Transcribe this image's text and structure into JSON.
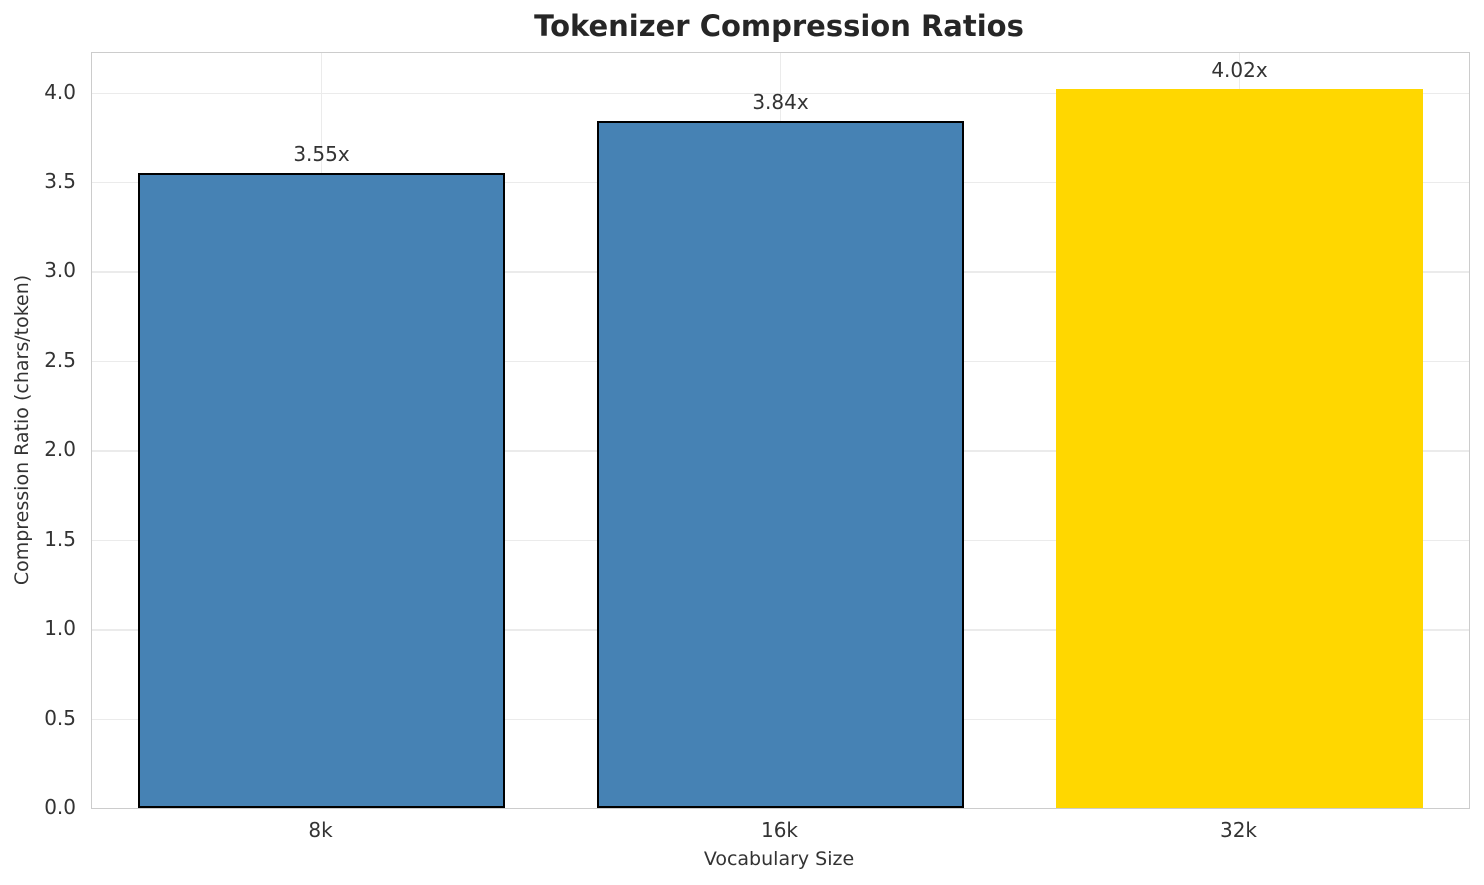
{
  "chart_data": {
    "type": "bar",
    "title": "Tokenizer Compression Ratios",
    "xlabel": "Vocabulary Size",
    "ylabel": "Compression Ratio (chars/token)",
    "categories": [
      "8k",
      "16k",
      "32k"
    ],
    "values": [
      3.55,
      3.84,
      4.02
    ],
    "value_labels": [
      "3.55x",
      "3.84x",
      "4.02x"
    ],
    "bar_colors": [
      "#4682B4",
      "#4682B4",
      "#FFD700"
    ],
    "bar_edge_colors": [
      "#000000",
      "#000000",
      "none"
    ],
    "bar_width_frac": 0.8,
    "ylim": [
      0,
      4.221
    ],
    "yticks": [
      0.0,
      0.5,
      1.0,
      1.5,
      2.0,
      2.5,
      3.0,
      3.5,
      4.0
    ],
    "ytick_labels": [
      "0.0",
      "0.5",
      "1.0",
      "1.5",
      "2.0",
      "2.5",
      "3.0",
      "3.5",
      "4.0"
    ],
    "grid": true,
    "legend": "none",
    "styles": {
      "grid_color": "#ebebeb",
      "spine_color": "#cccccc",
      "title_color": "#262626",
      "tick_color": "#333333",
      "background": "#ffffff"
    }
  }
}
